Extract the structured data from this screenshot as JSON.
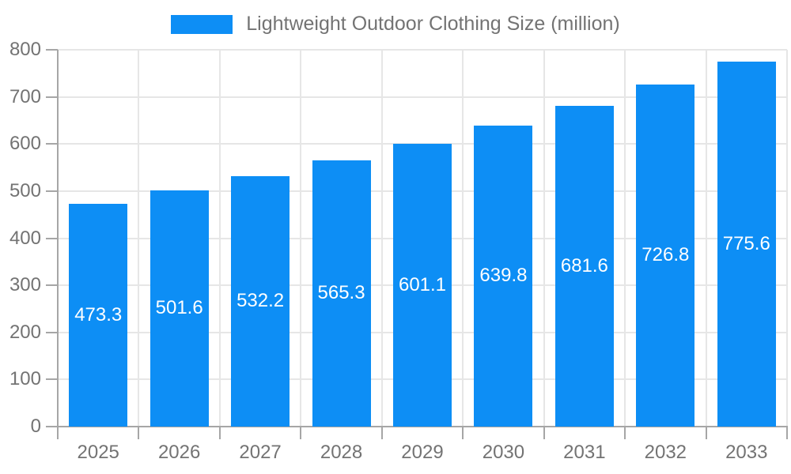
{
  "chart_data": {
    "type": "bar",
    "title": "Lightweight Outdoor Clothing Size (million)",
    "categories": [
      "2025",
      "2026",
      "2027",
      "2028",
      "2029",
      "2030",
      "2031",
      "2032",
      "2033"
    ],
    "series": [
      {
        "name": "Lightweight Outdoor Clothing Size (million)",
        "values": [
          473.3,
          501.6,
          532.2,
          565.3,
          601.1,
          639.8,
          681.6,
          726.8,
          775.6
        ]
      }
    ],
    "xlabel": "",
    "ylabel": "",
    "ylim": [
      0,
      800
    ],
    "yticks": [
      0,
      100,
      200,
      300,
      400,
      500,
      600,
      700,
      800
    ],
    "grid": true,
    "legend_position": "top",
    "bar_label_position": "inside-center",
    "colors": {
      "bar": "#0d8ef5",
      "bar_value_text": "#ffffff",
      "axis": "#a6a6a6",
      "grid": "#e6e6e6",
      "text": "#737373",
      "background": "#ffffff"
    }
  }
}
